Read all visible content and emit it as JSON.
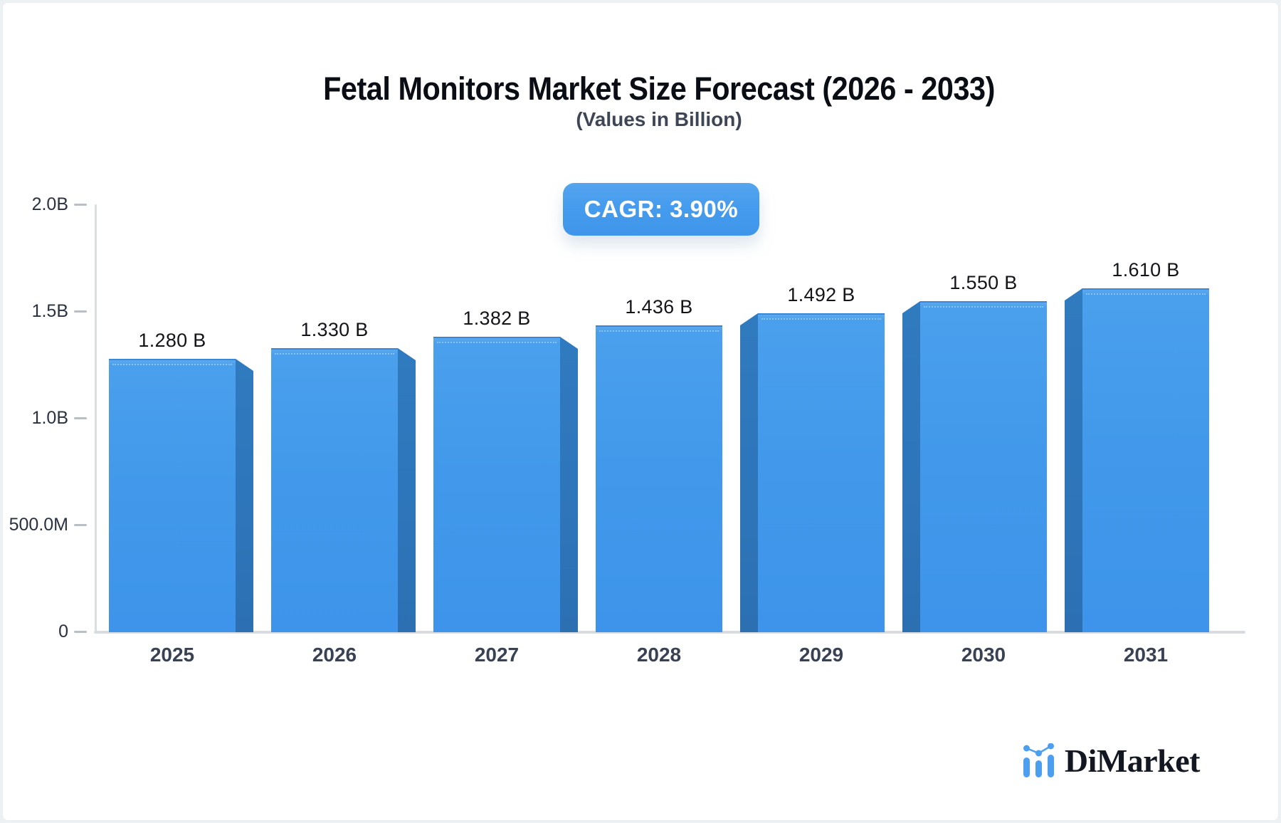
{
  "title": "Fetal Monitors Market Size Forecast (2026 - 2033)",
  "subtitle": "(Values in Billion)",
  "badge": {
    "label": "CAGR: 3.90%"
  },
  "brand": {
    "name": "DiMarket",
    "icon": "bar-chart-logo-icon"
  },
  "colors": {
    "accent_blue": "#459bed",
    "bar_face_top": "#55a5ee",
    "bar_face_bottom": "#3d94ea",
    "bar_side": "#2e76bb",
    "axis_gray": "#d8dce1",
    "text_dark": "#14151a",
    "badge_text": "#ffffff"
  },
  "chart_data": {
    "type": "bar",
    "title": "Fetal Monitors Market Size Forecast (2026 - 2033)",
    "subtitle": "(Values in Billion)",
    "annotation": "CAGR: 3.90%",
    "categories": [
      "2025",
      "2026",
      "2027",
      "2028",
      "2029",
      "2030",
      "2031"
    ],
    "values": [
      1.28,
      1.33,
      1.382,
      1.436,
      1.492,
      1.55,
      1.61
    ],
    "value_labels": [
      "1.280 B",
      "1.330 B",
      "1.382 B",
      "1.436 B",
      "1.492 B",
      "1.550 B",
      "1.610 B"
    ],
    "unit": "billion",
    "xlabel": "",
    "ylabel": "",
    "ylim": [
      0,
      2.0
    ],
    "y_ticks": [
      {
        "label": "2.0B",
        "value": 2.0
      },
      {
        "label": "1.5B",
        "value": 1.5
      },
      {
        "label": "1.0B",
        "value": 1.0
      },
      {
        "label": "500.0M",
        "value": 0.5
      },
      {
        "label": "0",
        "value": 0
      }
    ],
    "grid": false,
    "legend": false,
    "bar_style": "3d-perspective-blue"
  }
}
